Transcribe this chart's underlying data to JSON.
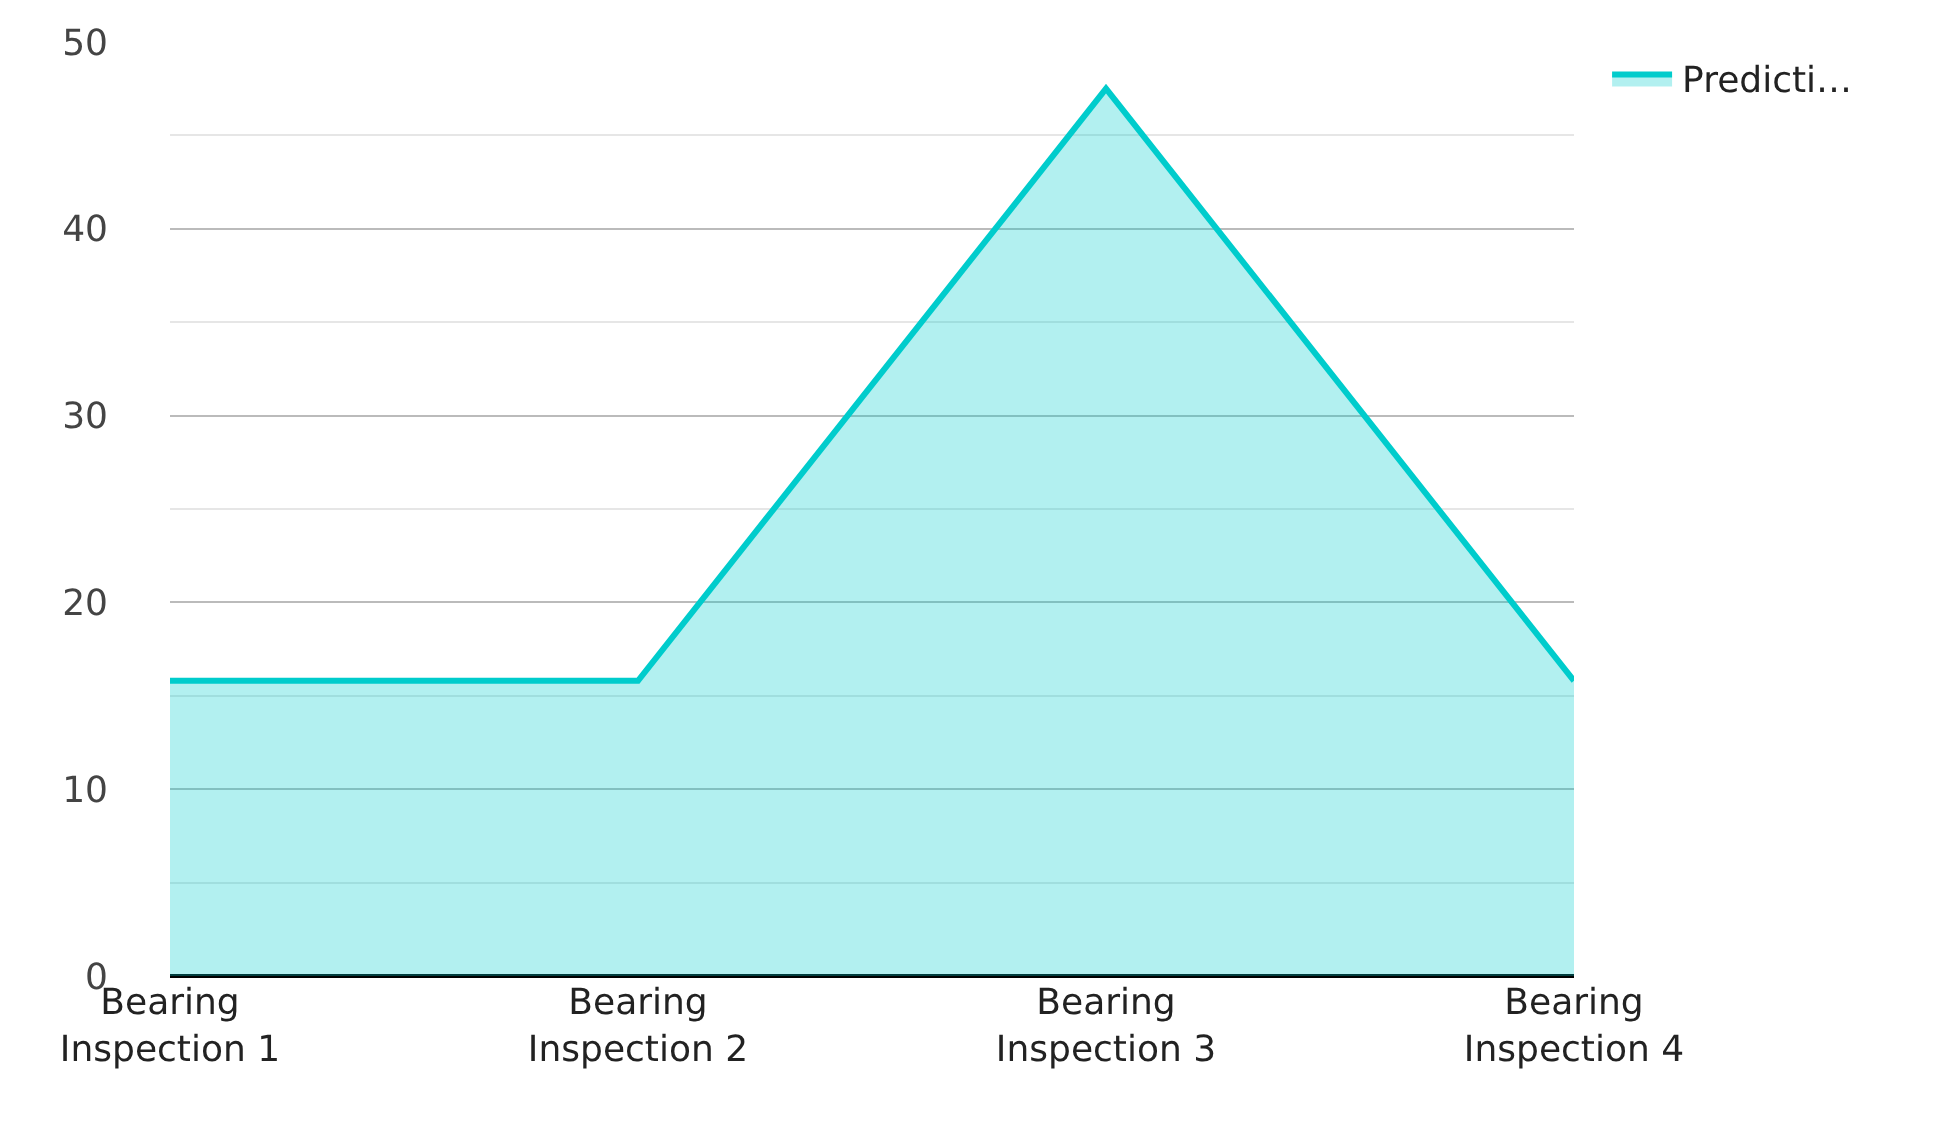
{
  "chart_data": {
    "type": "area",
    "categories": [
      "Bearing\nInspection 1",
      "Bearing\nInspection 2",
      "Bearing\nInspection 3",
      "Bearing\nInspection 4"
    ],
    "series": [
      {
        "name": "Predicti…",
        "color": "#00cccc",
        "values": [
          15.8,
          15.8,
          47.5,
          15.8
        ]
      }
    ],
    "ylim": [
      0,
      50
    ],
    "yticks": [
      0,
      {
        "value": 5,
        "label": null
      },
      10,
      {
        "value": 15,
        "label": null
      },
      20,
      {
        "value": 25,
        "label": null
      },
      30,
      {
        "value": 35,
        "label": null
      },
      40,
      {
        "value": 45,
        "label": null
      },
      50
    ],
    "grid": "y",
    "legend": "top right"
  }
}
